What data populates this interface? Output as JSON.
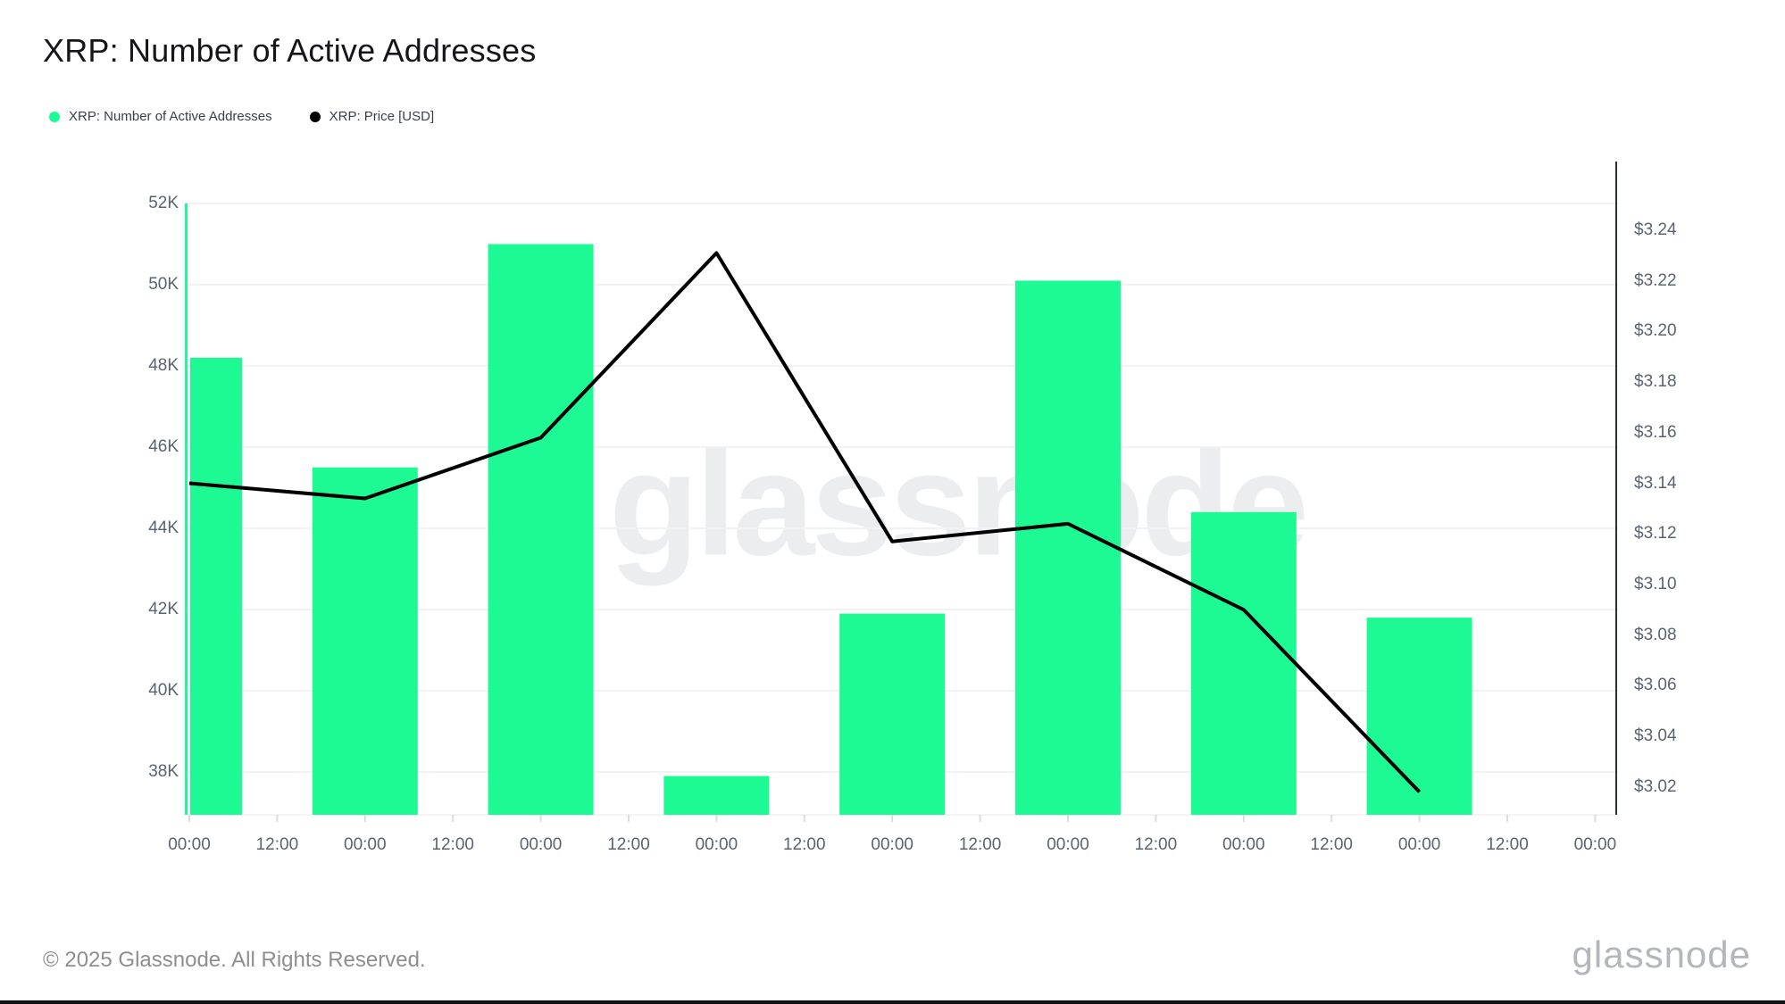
{
  "header": {
    "title": "XRP: Number of Active Addresses"
  },
  "legend": [
    {
      "label": "XRP: Number of Active Addresses",
      "color": "#1df993"
    },
    {
      "label": "XRP: Price [USD]",
      "color": "#000000"
    }
  ],
  "watermark": {
    "text": "glassnode"
  },
  "footer": {
    "copyright": "© 2025 Glassnode. All Rights Reserved.",
    "brand": "glassnode"
  },
  "chart_data": {
    "type": "bar",
    "title": "XRP: Number of Active Addresses",
    "legend_position": "top-left",
    "grid": "horizontal only",
    "x_axis": {
      "tick_labels": [
        "00:00",
        "12:00",
        "00:00",
        "12:00",
        "00:00",
        "12:00",
        "00:00",
        "12:00",
        "00:00",
        "12:00",
        "00:00",
        "12:00",
        "00:00",
        "12:00",
        "00:00",
        "12:00",
        "00:00"
      ],
      "note": "8 daily bars centered on the 00:00 ticks; an extra bar is clipped to a thin sliver at the left plot edge"
    },
    "left_axis": {
      "series": "XRP: Number of Active Addresses",
      "tick_labels": [
        "52K",
        "50K",
        "48K",
        "46K",
        "44K",
        "42K",
        "40K",
        "38K"
      ],
      "tick_values": [
        52000,
        50000,
        48000,
        46000,
        44000,
        42000,
        40000,
        38000
      ],
      "range": [
        36950,
        53030
      ]
    },
    "right_axis": {
      "series": "XRP: Price [USD]",
      "tick_labels": [
        "$3.24",
        "$3.22",
        "$3.20",
        "$3.18",
        "$3.16",
        "$3.14",
        "$3.12",
        "$3.10",
        "$3.08",
        "$3.06",
        "$3.04",
        "$3.02"
      ],
      "tick_values": [
        3.24,
        3.22,
        3.2,
        3.18,
        3.16,
        3.14,
        3.12,
        3.1,
        3.08,
        3.06,
        3.04,
        3.02
      ],
      "range": [
        3.009,
        3.267
      ]
    },
    "series": [
      {
        "name": "XRP: Number of Active Addresses",
        "type": "bar",
        "color": "#1df993",
        "values": [
          48200,
          45500,
          51000,
          37900,
          41900,
          50100,
          44400,
          41800
        ]
      },
      {
        "name": "XRP: Price [USD]",
        "type": "line",
        "color": "#000000",
        "values": [
          3.14,
          3.134,
          3.158,
          3.231,
          3.117,
          3.124,
          3.09,
          3.018
        ]
      }
    ],
    "clipped_left_edge_bar": {
      "visible_top_value": 52000
    }
  }
}
